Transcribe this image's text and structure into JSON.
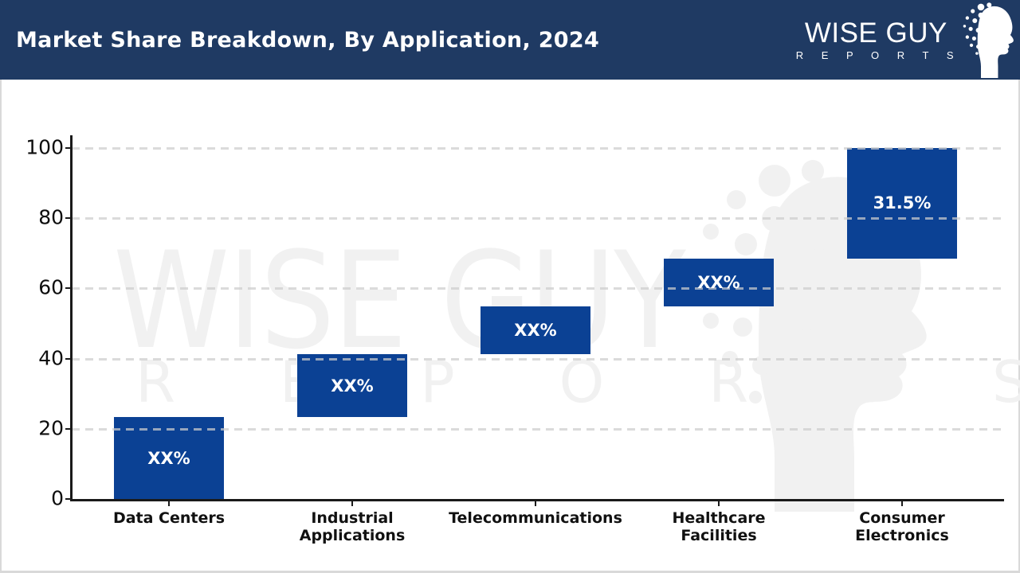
{
  "header": {
    "title": "Market Share Breakdown, By Application, 2024",
    "bg_color": "#1f3a63",
    "logo": {
      "line1": "WISE GUY",
      "line2": "R E P O R T S",
      "head_icon": "dotted-head-profile"
    }
  },
  "watermark": {
    "line1": "WISE GUY",
    "line2": "R E P O R T S",
    "head_icon": "dotted-head-profile"
  },
  "chart_data": {
    "type": "bar",
    "variant": "waterfall-stacked-percent",
    "title": "Market Share Breakdown, By Application, 2024",
    "categories": [
      "Data Centers",
      "Industrial Applications",
      "Telecommunications",
      "Healthcare Facilities",
      "Consumer Electronics"
    ],
    "segments": [
      {
        "category": "Data Centers",
        "category_lines": [
          "Data Centers"
        ],
        "start": 0,
        "end": 23.3,
        "value_label": "XX%"
      },
      {
        "category": "Industrial Applications",
        "category_lines": [
          "Industrial",
          "Applications"
        ],
        "start": 23.3,
        "end": 41.2,
        "value_label": "XX%"
      },
      {
        "category": "Telecommunications",
        "category_lines": [
          "Telecommunications"
        ],
        "start": 41.2,
        "end": 54.9,
        "value_label": "XX%"
      },
      {
        "category": "Healthcare Facilities",
        "category_lines": [
          "Healthcare",
          "Facilities"
        ],
        "start": 54.9,
        "end": 68.5,
        "value_label": "XX%"
      },
      {
        "category": "Consumer Electronics",
        "category_lines": [
          "Consumer",
          "Electronics"
        ],
        "start": 68.5,
        "end": 100,
        "value_label": "31.5%"
      }
    ],
    "xlabel": "",
    "ylabel": "",
    "yticks": [
      0,
      20,
      40,
      60,
      80,
      100
    ],
    "ylim": [
      0,
      103.5
    ],
    "grid": {
      "axis": "y",
      "style": "dashed",
      "color": "#d9d9d9",
      "drawn_over_bars": true
    },
    "bar_color": "#0b4194",
    "value_label_color": "#ffffff",
    "axis_color": "#1a1a1a",
    "legend": "none"
  }
}
